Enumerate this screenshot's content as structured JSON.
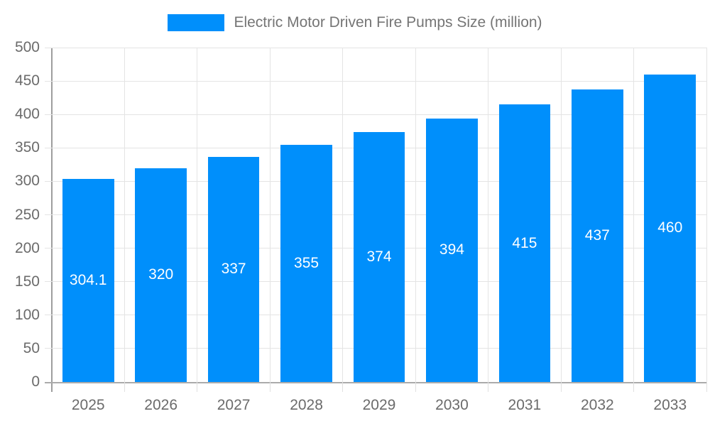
{
  "chart_data": {
    "type": "bar",
    "title": "Electric Motor Driven Fire Pumps Size (million)",
    "legend": {
      "label": "Electric Motor Driven Fire Pumps Size (million)",
      "position": "top",
      "swatch_color": "#008FFB"
    },
    "categories": [
      "2025",
      "2026",
      "2027",
      "2028",
      "2029",
      "2030",
      "2031",
      "2032",
      "2033"
    ],
    "values": [
      304.1,
      320,
      337,
      355,
      374,
      394,
      415,
      437,
      460
    ],
    "value_labels": [
      "304.1",
      "320",
      "337",
      "355",
      "374",
      "394",
      "415",
      "437",
      "460"
    ],
    "xlabel": "",
    "ylabel": "",
    "ylim": [
      0,
      500
    ],
    "y_ticks": [
      0,
      50,
      100,
      150,
      200,
      250,
      300,
      350,
      400,
      450,
      500
    ],
    "grid": true,
    "bar_color": "#008FFB",
    "value_label_color": "#ffffff"
  },
  "colors": {
    "accent": "#008FFB",
    "gridline": "#e4e4e4",
    "axis_line": "#9e9e9e",
    "axis_text": "#6b6b6b",
    "legend_text": "#757575",
    "background": "#ffffff"
  }
}
